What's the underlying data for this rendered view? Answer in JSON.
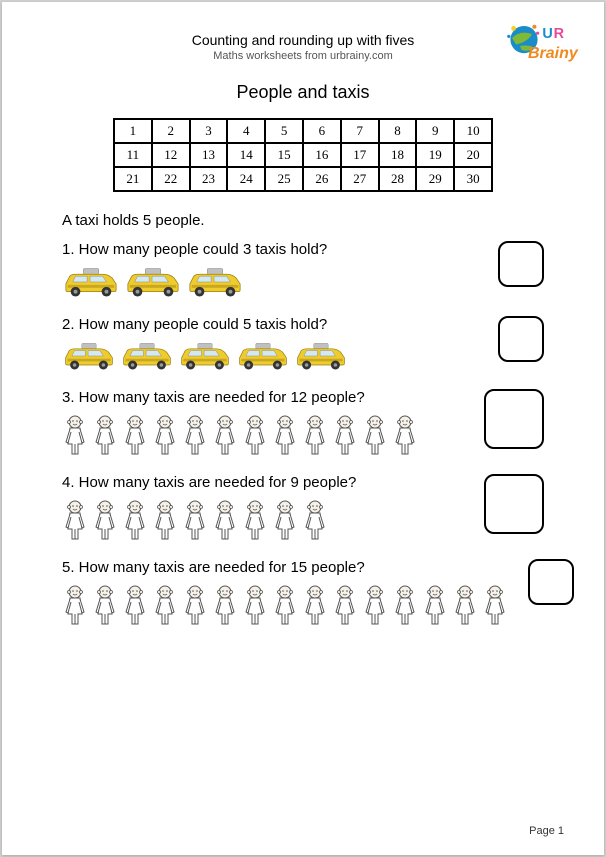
{
  "header": {
    "title": "Counting and rounding up with fives",
    "subtitle": "Maths worksheets from urbrainy.com"
  },
  "logo": {
    "text_u": "U",
    "text_r": "R",
    "text_brainy": "Brainy",
    "globe_color": "#1a8cc9",
    "land_color": "#7fb936",
    "accent_yellow": "#f5d21a",
    "accent_orange": "#f08a1f",
    "accent_pink": "#e84a9a",
    "u_color": "#1a8cc9",
    "r_color": "#e84a9a",
    "brainy_color": "#f08a1f"
  },
  "section_title": "People and taxis",
  "number_grid": {
    "rows": 3,
    "cols": 10,
    "values": [
      1,
      2,
      3,
      4,
      5,
      6,
      7,
      8,
      9,
      10,
      11,
      12,
      13,
      14,
      15,
      16,
      17,
      18,
      19,
      20,
      21,
      22,
      23,
      24,
      25,
      26,
      27,
      28,
      29,
      30
    ]
  },
  "intro": "A taxi holds 5 people.",
  "questions": [
    {
      "num": "1.",
      "text": "How many people could 3 taxis hold?",
      "icon": "taxi",
      "count": 3,
      "box_size": "small",
      "icon_size": "normal"
    },
    {
      "num": "2.",
      "text": "How many people could 5 taxis hold?",
      "icon": "taxi",
      "count": 5,
      "box_size": "small",
      "icon_size": "small"
    },
    {
      "num": "3.",
      "text": "How many taxis are needed for 12 people?",
      "icon": "person",
      "count": 12,
      "box_size": "large"
    },
    {
      "num": "4.",
      "text": "How many taxis are needed for 9 people?",
      "icon": "person",
      "count": 9,
      "box_size": "large"
    },
    {
      "num": "5.",
      "text": "How many taxis are needed for 15 people?",
      "icon": "person",
      "count": 15,
      "box_size": "small"
    }
  ],
  "taxi_colors": {
    "body": "#eecc2e",
    "body_shadow": "#c9a820",
    "window": "#d4e8f0",
    "wheel": "#333333",
    "light_bg": "#c0c0c0"
  },
  "person_colors": {
    "outline": "#555555",
    "fill": "#ffffff",
    "skin": "#f5f0e8",
    "shirt": "#e8e8e8"
  },
  "page_label": "Page 1"
}
